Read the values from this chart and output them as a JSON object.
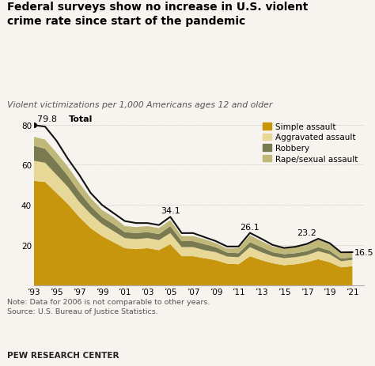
{
  "title": "Federal surveys show no increase in U.S. violent\ncrime rate since start of the pandemic",
  "subtitle": "Violent victimizations per 1,000 Americans ages 12 and older",
  "note": "Note: Data for 2006 is not comparable to other years.\nSource: U.S. Bureau of Justice Statistics.",
  "footer": "PEW RESEARCH CENTER",
  "years": [
    1993,
    1994,
    1995,
    1996,
    1997,
    1998,
    1999,
    2000,
    2001,
    2002,
    2003,
    2004,
    2005,
    2006,
    2007,
    2008,
    2009,
    2010,
    2011,
    2012,
    2013,
    2014,
    2015,
    2016,
    2017,
    2018,
    2019,
    2020,
    2021
  ],
  "total": [
    79.8,
    79.0,
    72.0,
    63.0,
    55.0,
    46.0,
    40.0,
    36.0,
    32.0,
    31.0,
    31.0,
    30.0,
    34.1,
    26.0,
    26.0,
    24.0,
    22.0,
    19.3,
    19.3,
    26.1,
    23.2,
    20.1,
    18.6,
    19.2,
    20.6,
    23.2,
    21.0,
    16.4,
    16.5
  ],
  "simple_assault": [
    52.0,
    51.5,
    46.0,
    40.5,
    34.0,
    28.5,
    24.5,
    21.5,
    18.5,
    18.0,
    18.5,
    17.5,
    20.5,
    14.5,
    14.5,
    13.5,
    12.5,
    10.8,
    10.5,
    14.5,
    12.5,
    11.0,
    10.0,
    10.5,
    11.5,
    13.0,
    11.5,
    9.0,
    9.5
  ],
  "aggravated_assault": [
    10.0,
    9.5,
    9.0,
    8.5,
    7.5,
    7.0,
    6.0,
    5.5,
    5.0,
    5.0,
    5.0,
    5.0,
    5.5,
    4.5,
    4.5,
    4.0,
    4.0,
    3.5,
    3.5,
    4.5,
    4.0,
    3.5,
    3.5,
    3.5,
    3.5,
    4.0,
    4.0,
    3.0,
    3.2
  ],
  "robbery": [
    7.5,
    7.0,
    6.5,
    5.5,
    5.0,
    4.0,
    3.5,
    3.5,
    3.0,
    3.0,
    3.0,
    3.0,
    3.5,
    3.0,
    3.0,
    3.0,
    2.5,
    2.0,
    2.0,
    2.5,
    2.5,
    2.0,
    2.0,
    2.0,
    2.0,
    2.0,
    1.8,
    1.3,
    1.2
  ],
  "rape_sexual_assault": [
    4.5,
    4.5,
    4.5,
    4.5,
    4.5,
    4.0,
    3.5,
    3.5,
    3.0,
    3.0,
    3.0,
    3.0,
    3.0,
    2.5,
    2.5,
    2.5,
    2.0,
    2.0,
    2.5,
    3.5,
    3.0,
    2.8,
    2.8,
    2.9,
    3.1,
    3.7,
    3.2,
    2.6,
    2.3
  ],
  "color_simple_assault": "#C8960C",
  "color_aggravated_assault": "#E8D898",
  "color_robbery": "#7A7A50",
  "color_rape_sexual_assault": "#C0B878",
  "color_total_line": "#111111",
  "ylim": [
    0,
    84
  ],
  "yticks": [
    20,
    40,
    60,
    80
  ],
  "xtick_years": [
    1993,
    1995,
    1997,
    1999,
    2001,
    2003,
    2005,
    2007,
    2009,
    2011,
    2013,
    2015,
    2017,
    2019,
    2021
  ],
  "bg_color": "#F7F3EE",
  "legend_labels": [
    "Simple assault",
    "Aggravated assault",
    "Robbery",
    "Rape/sexual assault"
  ]
}
